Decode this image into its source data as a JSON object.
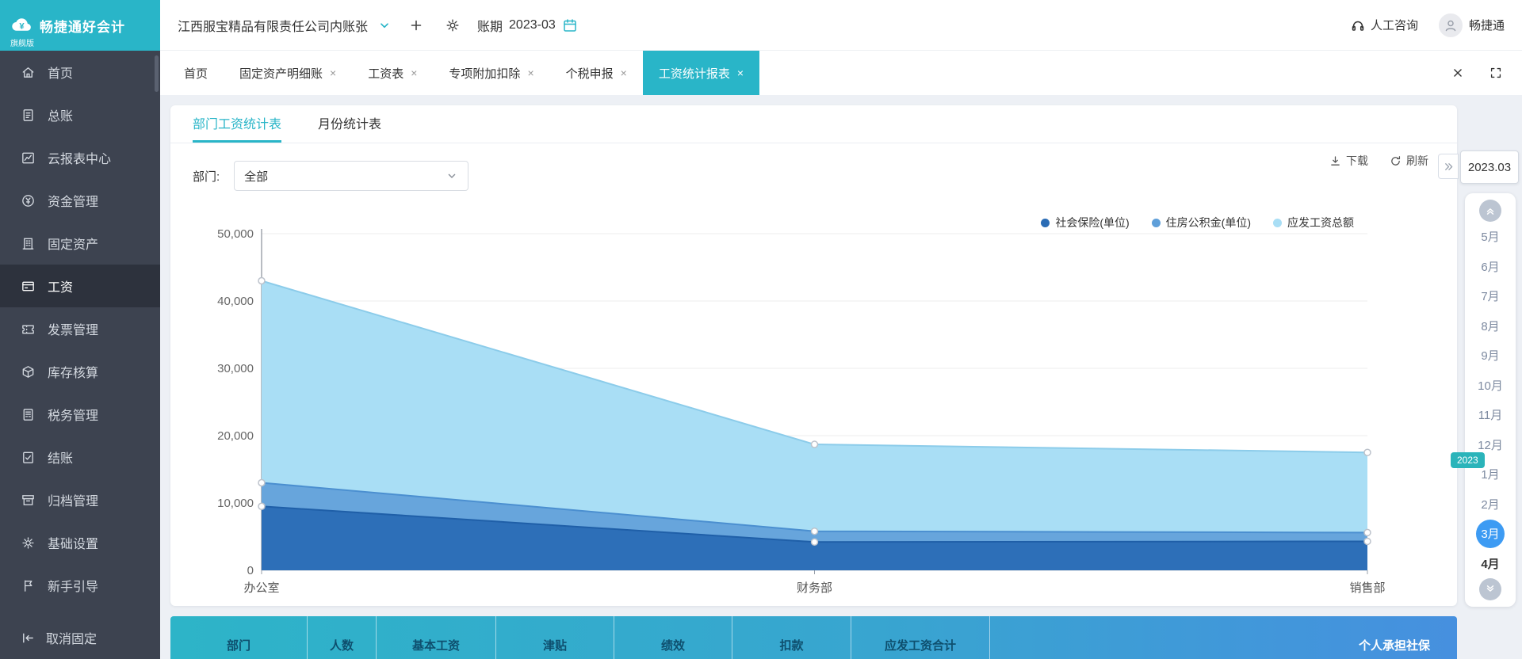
{
  "header": {
    "brand": "畅捷通好会计",
    "edition": "旗舰版",
    "company": "江西服宝精品有限责任公司内账张",
    "period_label": "账期",
    "period_value": "2023-03",
    "support_label": "人工咨询",
    "user_name": "畅捷通"
  },
  "sidebar": {
    "items": [
      {
        "label": "首页"
      },
      {
        "label": "总账"
      },
      {
        "label": "云报表中心"
      },
      {
        "label": "资金管理"
      },
      {
        "label": "固定资产"
      },
      {
        "label": "工资",
        "active": true
      },
      {
        "label": "发票管理"
      },
      {
        "label": "库存核算"
      },
      {
        "label": "税务管理"
      },
      {
        "label": "结账"
      },
      {
        "label": "归档管理"
      },
      {
        "label": "基础设置"
      },
      {
        "label": "新手引导"
      }
    ],
    "unpin_label": "取消固定"
  },
  "tabs": [
    {
      "label": "首页",
      "closable": false
    },
    {
      "label": "固定资产明细账",
      "closable": true
    },
    {
      "label": "工资表",
      "closable": true
    },
    {
      "label": "专项附加扣除",
      "closable": true
    },
    {
      "label": "个税申报",
      "closable": true
    },
    {
      "label": "工资统计报表",
      "closable": true,
      "active": true
    }
  ],
  "report": {
    "subtabs": [
      {
        "label": "部门工资统计表",
        "active": true
      },
      {
        "label": "月份统计表"
      }
    ],
    "download_label": "下载",
    "refresh_label": "刷新",
    "filter_label": "部门:",
    "filter_value": "全部"
  },
  "chart_data": {
    "type": "area",
    "categories": [
      "办公室",
      "财务部",
      "销售部"
    ],
    "series": [
      {
        "name": "社会保险(单位)",
        "values": [
          9500,
          4200,
          4300
        ],
        "color": "#2a6cb5",
        "line_color": "#1f5fa8",
        "area_opacity": 0.95
      },
      {
        "name": "住房公积金(单位)",
        "values": [
          13000,
          5800,
          5600
        ],
        "color": "#5f9fd9",
        "line_color": "#4b8fd0",
        "area_opacity": 0.9
      },
      {
        "name": "应发工资总额",
        "values": [
          43000,
          18700,
          17500
        ],
        "color": "#a9def5",
        "line_color": "#8cccea",
        "area_opacity": 1
      }
    ],
    "ylim": [
      0,
      50000
    ],
    "yticks": [
      {
        "label": "50,000",
        "value": 50000
      },
      {
        "label": "40,000",
        "value": 40000
      },
      {
        "label": "30,000",
        "value": 30000
      },
      {
        "label": "20,000",
        "value": 20000
      },
      {
        "label": "10,000",
        "value": 10000
      },
      {
        "label": "0",
        "value": 0
      }
    ],
    "grid": true,
    "legend_position": "top-right"
  },
  "month_panel": {
    "current_period": "2023.03",
    "year_badge": "2023",
    "months": [
      "5月",
      "6月",
      "7月",
      "8月",
      "9月",
      "10月",
      "11月",
      "12月",
      "1月",
      "2月",
      "3月",
      "4月"
    ],
    "active_month": "3月",
    "active_color": "#3d9bf3"
  },
  "table": {
    "headers": [
      "部门",
      "人数",
      "基本工资",
      "津贴",
      "绩效",
      "扣款",
      "应发工资合计",
      "个人承担社保"
    ]
  },
  "colors": {
    "primary": "#29b5c8",
    "sidebar_bg": "#3d4350",
    "content_bg": "#edf0f5"
  }
}
